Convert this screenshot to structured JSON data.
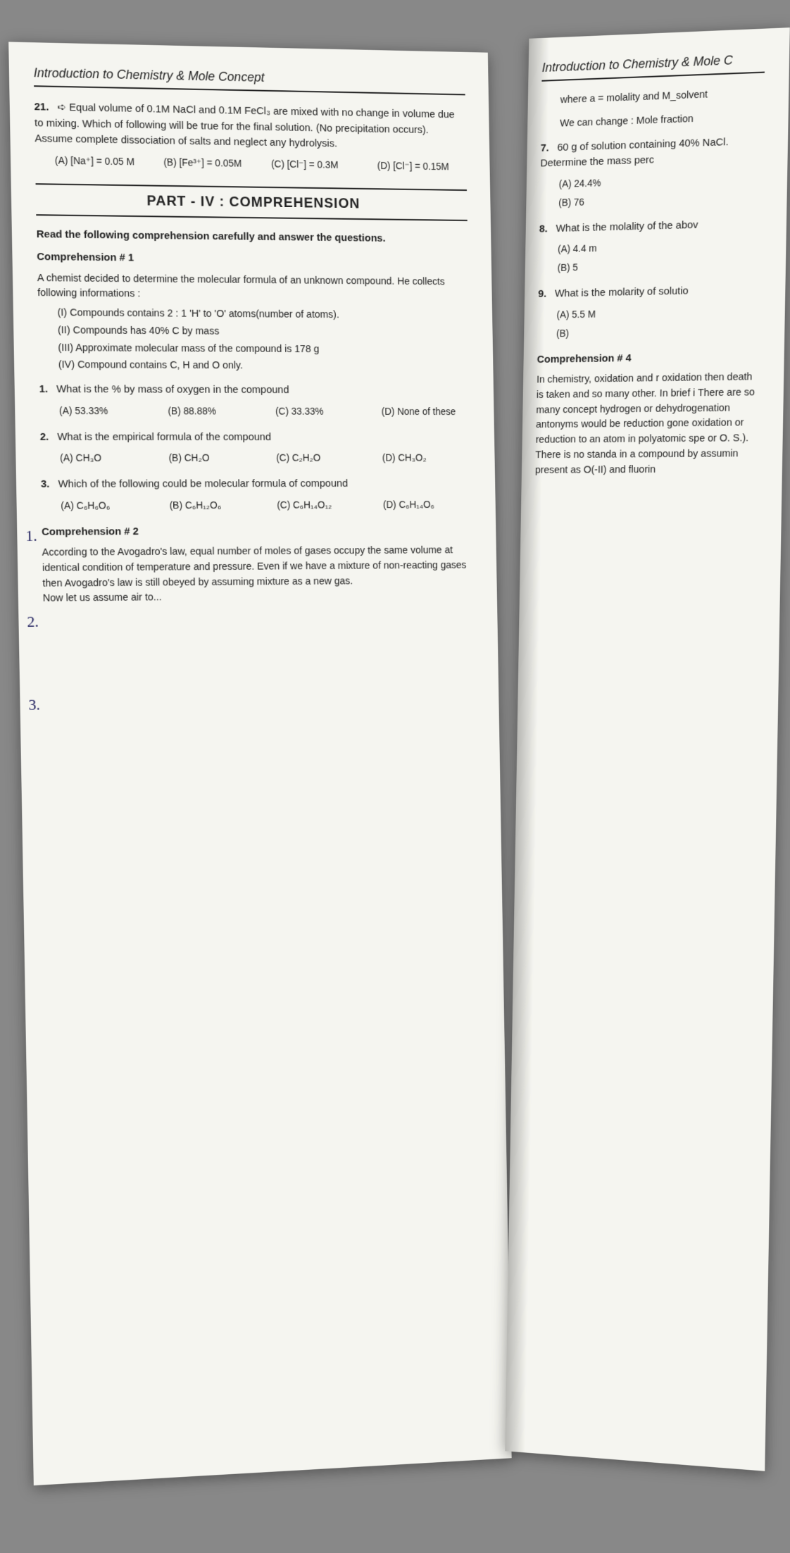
{
  "left": {
    "header": "Introduction to Chemistry & Mole Concept",
    "q21": {
      "num": "21.",
      "arrow": "➪",
      "text": "Equal volume of 0.1M NaCl and 0.1M FeCl₃ are mixed with no change in volume due to mixing. Which of following will be true for the final solution. (No precipitation occurs). Assume complete dissociation of salts and neglect any hydrolysis.",
      "opts": {
        "a": "(A) [Na⁺] = 0.05 M",
        "b": "(B) [Fe³⁺] = 0.05M",
        "c": "(C) [Cl⁻] = 0.3M",
        "d": "(D) [Cl⁻] = 0.15M"
      }
    },
    "part_title": "PART - IV : COMPREHENSION",
    "instruction": "Read the following comprehension carefully and answer the questions.",
    "comp1": {
      "title": "Comprehension # 1",
      "body": "A chemist decided to determine the molecular formula of an unknown compound. He collects following informations :",
      "info": {
        "i": "(I) Compounds contains 2 : 1 'H' to 'O' atoms(number of atoms).",
        "ii": "(II) Compounds has 40% C by mass",
        "iii": "(III) Approximate molecular mass of the compound is 178 g",
        "iv": "(IV) Compound contains C, H and O only."
      }
    },
    "q1": {
      "num": "1.",
      "text": "What is the % by mass of oxygen in the compound",
      "opts": {
        "a": "(A) 53.33%",
        "b": "(B) 88.88%",
        "c": "(C) 33.33%",
        "d": "(D) None of these"
      }
    },
    "q2": {
      "num": "2.",
      "text": "What is the empirical formula of the compound",
      "opts": {
        "a": "(A) CH₃O",
        "b": "(B) CH₂O",
        "c": "(C) C₂H₂O",
        "d": "(D) CH₃O₂"
      }
    },
    "q3": {
      "num": "3.",
      "text": "Which of the following could be molecular formula of compound",
      "opts": {
        "a": "(A) C₆H₆O₆",
        "b": "(B) C₆H₁₂O₆",
        "c": "(C) C₆H₁₄O₁₂",
        "d": "(D) C₆H₁₄O₆"
      }
    },
    "comp2": {
      "title": "Comprehension # 2",
      "body": "According to the Avogadro's law, equal number of moles of gases occupy the same volume at identical condition of temperature and pressure. Even if we have a mixture of non-reacting gases then Avogadro's law is still obeyed by assuming mixture as a new gas.",
      "tail": "Now let us assume air to..."
    },
    "hw": {
      "n1": "1.",
      "n2": "2.",
      "n3": "3."
    }
  },
  "right": {
    "header": "Introduction to Chemistry & Mole C",
    "line1": "where a = molality and M_solvent",
    "line2": "We can change : Mole fraction",
    "q7": {
      "num": "7.",
      "text": "60 g of solution containing 40% NaCl. Determine the mass perc",
      "opts": {
        "a": "(A) 24.4%",
        "b": "(B) 76"
      }
    },
    "q8": {
      "num": "8.",
      "text": "What is the molality of the abov",
      "opts": {
        "a": "(A) 4.4 m",
        "b": "(B) 5"
      }
    },
    "q9": {
      "num": "9.",
      "text": "What is the molarity of solutio",
      "opts": {
        "a": "(A) 5.5 M",
        "b": "(B)"
      }
    },
    "comp4": {
      "title": "Comprehension # 4",
      "body": "In chemistry, oxidation and r oxidation then death is taken and so many other. In brief i There are so many concept hydrogen or dehydrogenation antonyms would be reduction gone oxidation or reduction to an atom in polyatomic spe or O. S.). There is no standa in a compound by assumin present as O(-II) and fluorin"
    }
  }
}
